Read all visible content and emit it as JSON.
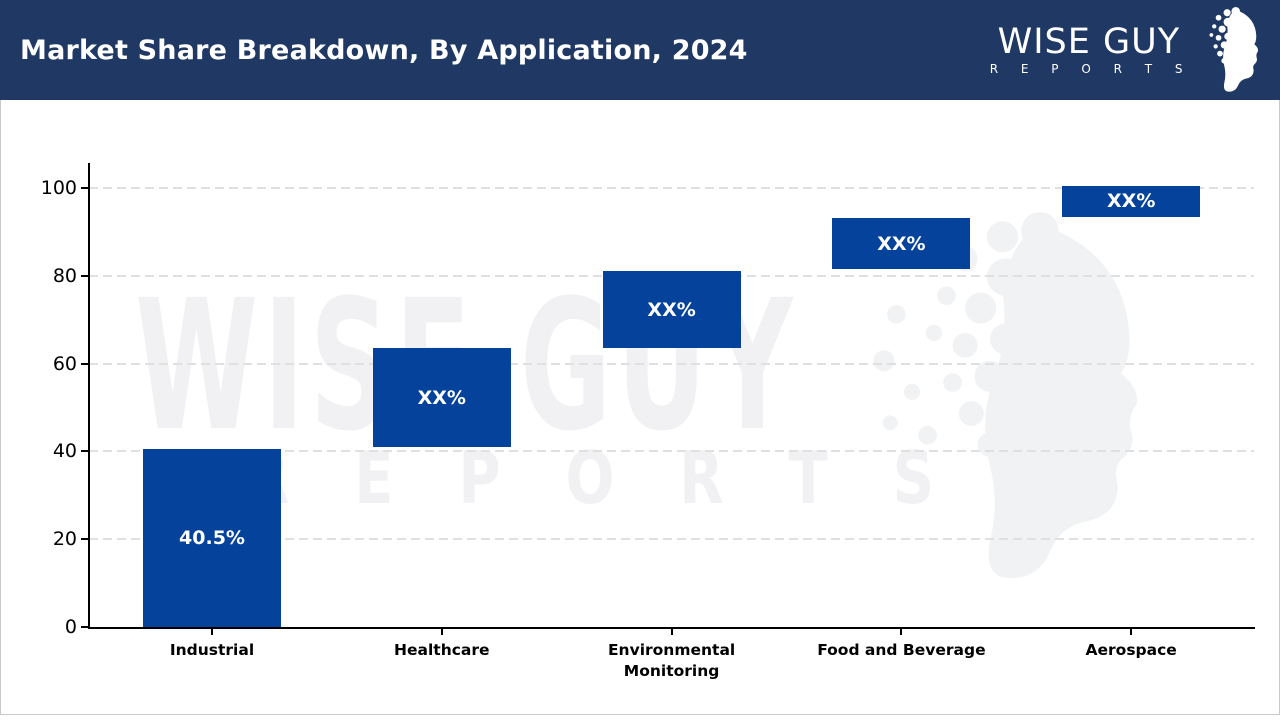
{
  "header": {
    "title": "Market Share Breakdown, By Application, 2024",
    "background": "#1f3864",
    "logo": {
      "line1": "WISE GUY",
      "line2": "R E P O R T S"
    }
  },
  "watermark": {
    "line1": "WISE GUY",
    "line2": "R E P O R T S"
  },
  "colors": {
    "bar": "#04429b",
    "header": "#1f3864",
    "grid": "#e0e0e0",
    "axis": "#000000",
    "watermark": "#f1f1f4"
  },
  "chart_data": {
    "type": "bar",
    "subtype": "waterfall",
    "title": "Market Share Breakdown, By Application, 2024",
    "categories": [
      "Industrial",
      "Healthcare",
      "Environmental Monitoring",
      "Food and Beverage",
      "Aerospace"
    ],
    "segments": [
      {
        "category": "Industrial",
        "start": 0,
        "end": 40.5,
        "label": "40.5%"
      },
      {
        "category": "Healthcare",
        "start": 41,
        "end": 63.5,
        "label": "XX%"
      },
      {
        "category": "Environmental Monitoring",
        "start": 63.5,
        "end": 81,
        "label": "XX%"
      },
      {
        "category": "Food and Beverage",
        "start": 81.5,
        "end": 93.2,
        "label": "XX%"
      },
      {
        "category": "Aerospace",
        "start": 93.5,
        "end": 100.4,
        "label": "XX%"
      }
    ],
    "xlabel": "",
    "ylabel": "",
    "yticks": [
      0,
      20,
      40,
      60,
      80,
      100
    ],
    "ylim": [
      0,
      105.7
    ],
    "grid": "horizontal-dashed",
    "legend": null,
    "bar_color": "#04429b"
  }
}
